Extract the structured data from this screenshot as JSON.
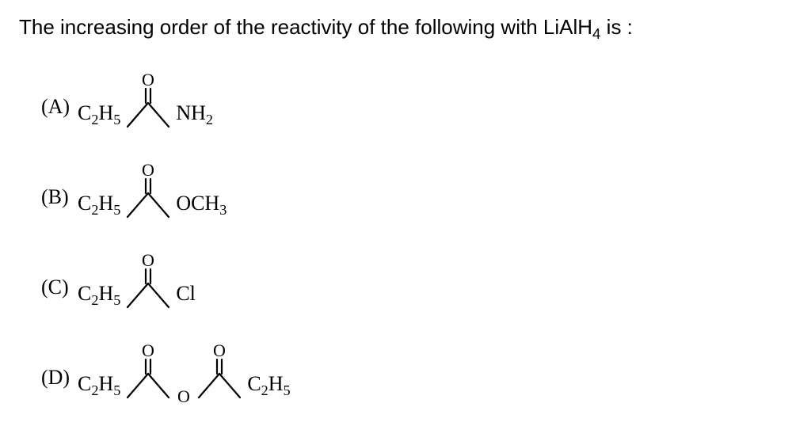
{
  "question_prefix": "The increasing order of the reactivity of the following with ",
  "reagent": "LiAlH",
  "reagent_sub": "4",
  "question_suffix": " is :",
  "options": [
    {
      "label": "(A)",
      "left_group": "C_2H_5",
      "right_group": "NH_2",
      "type": "single"
    },
    {
      "label": "(B)",
      "left_group": "C_2H_5",
      "right_group": "OCH_3",
      "type": "single"
    },
    {
      "label": "(C)",
      "left_group": "C_2H_5",
      "right_group": "Cl",
      "type": "single"
    },
    {
      "label": "(D)",
      "left_group": "C_2H_5",
      "mid_text": "O",
      "right_group": "C_2H_5",
      "type": "double"
    }
  ],
  "style": {
    "stroke": "#000000",
    "stroke_width": 2.2,
    "o_font_size": 22
  }
}
